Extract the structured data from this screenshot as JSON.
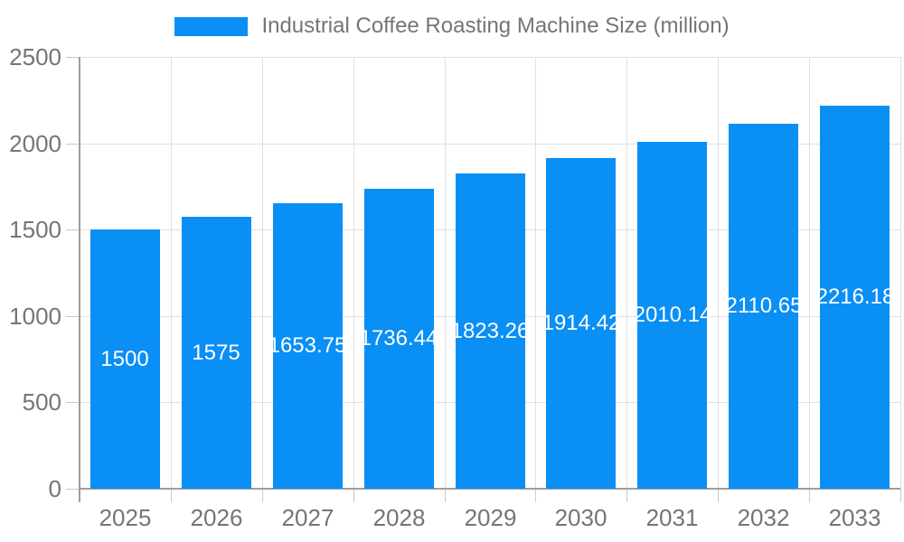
{
  "chart_data": {
    "type": "bar",
    "title": "Industrial Coffee Roasting Machine Size (million)",
    "categories": [
      "2025",
      "2026",
      "2027",
      "2028",
      "2029",
      "2030",
      "2031",
      "2032",
      "2033"
    ],
    "values": [
      1500,
      1575,
      1653.75,
      1736.44,
      1823.26,
      1914.42,
      2010.14,
      2110.65,
      2216.18
    ],
    "value_labels": [
      "1500",
      "1575",
      "1653.75",
      "1736.44",
      "1823.26",
      "1914.42",
      "2010.14",
      "2110.65",
      "2216.18"
    ],
    "xlabel": "",
    "ylabel": "",
    "ylim": [
      0,
      2500
    ],
    "ytick_step": 500,
    "ytick_labels": [
      "0",
      "500",
      "1000",
      "1500",
      "2000",
      "2500"
    ],
    "grid": true,
    "legend_position": "top-center",
    "colors": {
      "bar": "#0a8ff5",
      "axis": "#9e9e9e",
      "gridline": "#e0e0e0",
      "tick": "#c9c9c9",
      "text": "#757575",
      "value_label_text": "#ffffff",
      "background": "#ffffff"
    }
  }
}
